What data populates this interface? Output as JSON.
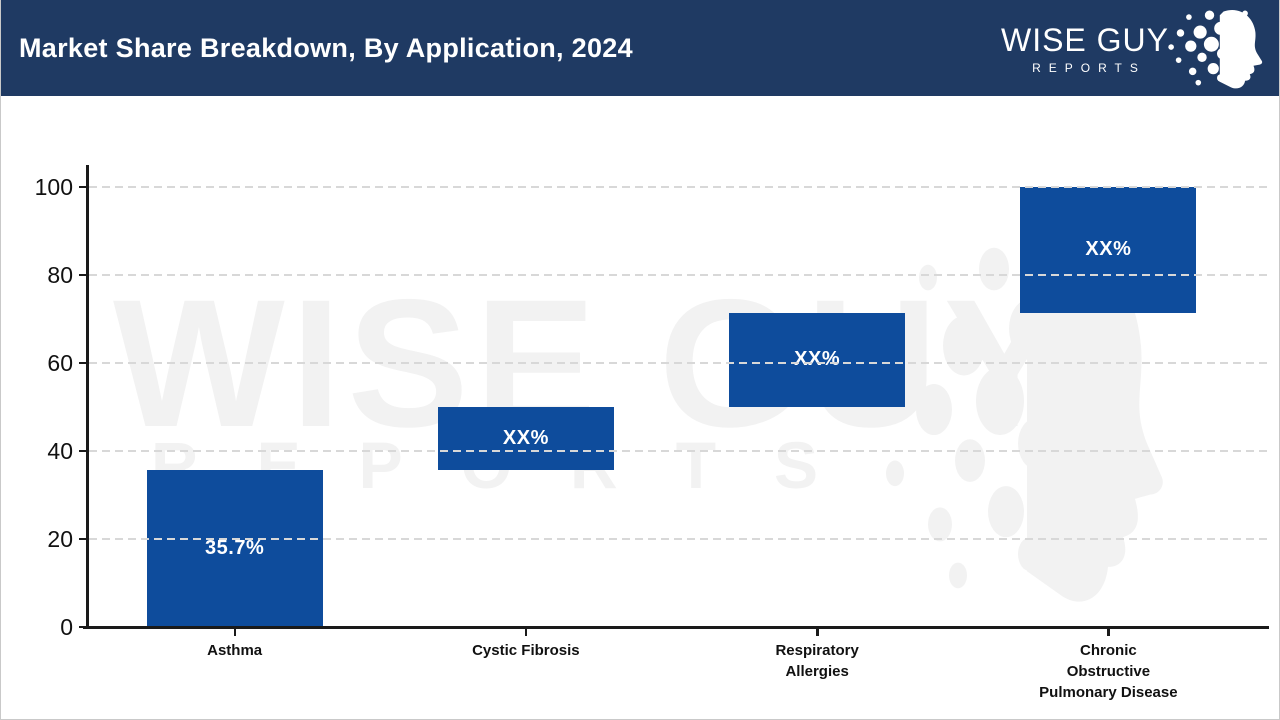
{
  "header": {
    "title": "Market Share Breakdown, By Application, 2024",
    "logo": {
      "name": "WISE GUY",
      "sub": "REPORTS"
    }
  },
  "watermark": {
    "text": "WISE GUY",
    "sub": "REPORTS"
  },
  "colors": {
    "header_bg": "#1f3a63",
    "bar_fill": "#0e4c9c",
    "bar_label_text": "#ffffff",
    "axis": "#1a1a1a",
    "gridline": "#d8d8d8",
    "tick_text": "#111111",
    "page_bg": "#ffffff",
    "watermark": "#f2f2f2"
  },
  "chart_data": {
    "type": "bar",
    "subtype": "waterfall",
    "title": "Market Share Breakdown, By Application, 2024",
    "categories": [
      "Asthma",
      "Cystic Fibrosis",
      "Respiratory Allergies",
      "Chronic Obstructive Pulmonary Disease"
    ],
    "category_lines": [
      [
        "Asthma"
      ],
      [
        "Cystic Fibrosis"
      ],
      [
        "Respiratory",
        "Allergies"
      ],
      [
        "Chronic",
        "Obstructive",
        "Pulmonary Disease"
      ]
    ],
    "segments": [
      {
        "id": "asthma",
        "category": "Asthma",
        "start": 0,
        "end": 35.7,
        "value": 35.7,
        "label": "35.7%"
      },
      {
        "id": "cystic-fibrosis",
        "category": "Cystic Fibrosis",
        "start": 35.7,
        "end": 50,
        "value": 14.3,
        "label": "XX%"
      },
      {
        "id": "respiratory-allergies",
        "category": "Respiratory Allergies",
        "start": 50,
        "end": 71.4,
        "value": 21.4,
        "label": "XX%"
      },
      {
        "id": "copd",
        "category": "Chronic Obstructive Pulmonary Disease",
        "start": 71.4,
        "end": 100,
        "value": 28.6,
        "label": "XX%"
      }
    ],
    "ylim": [
      0,
      100
    ],
    "yticks": [
      0,
      20,
      40,
      60,
      80,
      100
    ],
    "xlabel": "",
    "ylabel": "",
    "grid": "horizontal-dashed",
    "legend": "none"
  }
}
